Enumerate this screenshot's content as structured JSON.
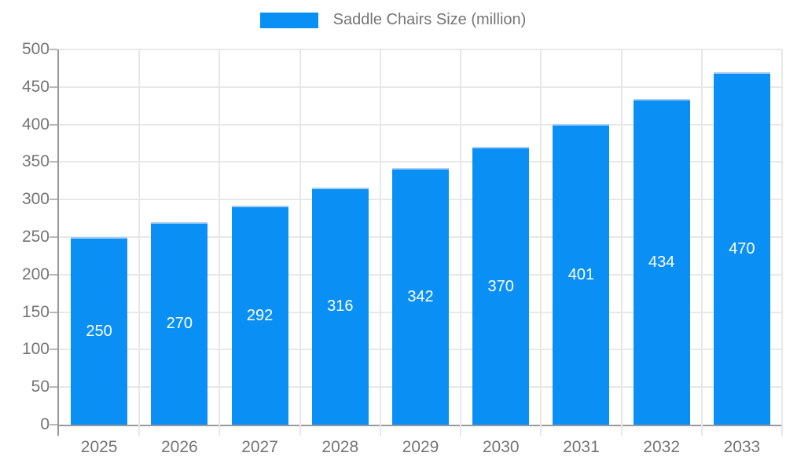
{
  "legend": {
    "label": "Saddle Chairs Size (million)"
  },
  "chart_data": {
    "type": "bar",
    "title": "Saddle Chairs Size (million)",
    "categories": [
      "2025",
      "2026",
      "2027",
      "2028",
      "2029",
      "2030",
      "2031",
      "2032",
      "2033"
    ],
    "values": [
      250,
      270,
      292,
      316,
      342,
      370,
      401,
      434,
      470
    ],
    "xlabel": "",
    "ylabel": "",
    "ylim": [
      0,
      500
    ],
    "ytick_step": 50,
    "grid": true,
    "legend_position": "top",
    "colors": {
      "bar": "#0a90f4",
      "bar_top_border": "#aacdf2",
      "axis": "#999999",
      "grid": "#e8e8e8",
      "tick": "#b8b8b8",
      "label": "#757575",
      "value_label": "#ffffff"
    }
  }
}
